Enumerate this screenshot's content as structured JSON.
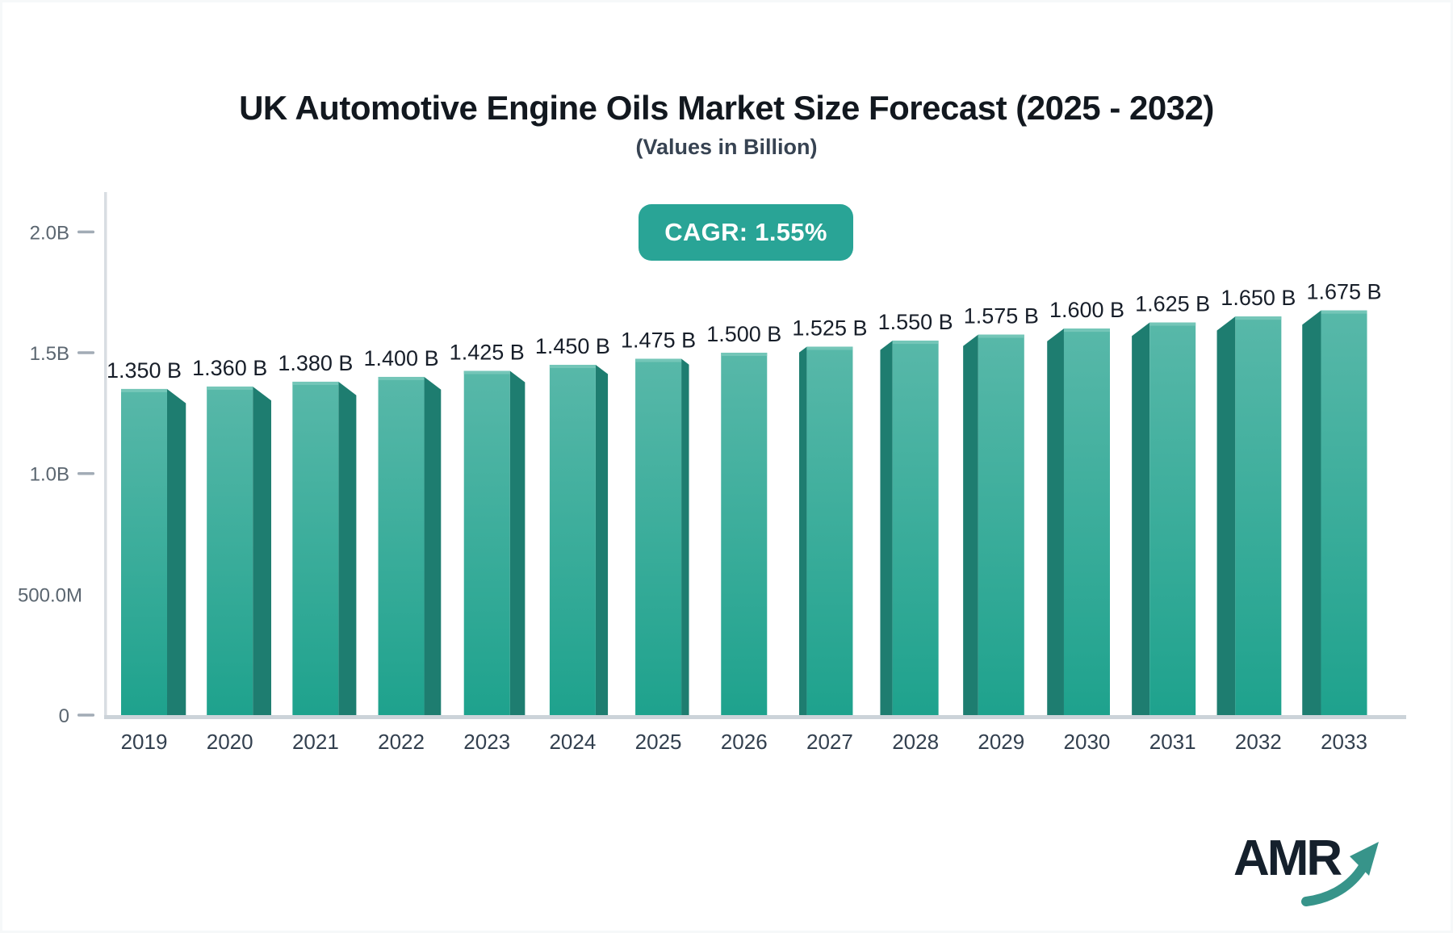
{
  "chart_data": {
    "type": "bar",
    "title": "UK Automotive Engine Oils Market Size Forecast (2025 - 2032)",
    "subtitle": "(Values in Billion)",
    "categories": [
      "2019",
      "2020",
      "2021",
      "2022",
      "2023",
      "2024",
      "2025",
      "2026",
      "2027",
      "2028",
      "2029",
      "2030",
      "2031",
      "2032",
      "2033"
    ],
    "values": [
      1.35,
      1.36,
      1.38,
      1.4,
      1.425,
      1.45,
      1.475,
      1.5,
      1.525,
      1.55,
      1.575,
      1.6,
      1.625,
      1.65,
      1.675
    ],
    "value_labels": [
      "1.350 B",
      "1.360 B",
      "1.380 B",
      "1.400 B",
      "1.425 B",
      "1.450 B",
      "1.475 B",
      "1.500 B",
      "1.525 B",
      "1.550 B",
      "1.575 B",
      "1.600 B",
      "1.625 B",
      "1.650 B",
      "1.675 B"
    ],
    "unit": "B",
    "ylim": [
      0,
      2.0
    ],
    "grid": false,
    "legend": false,
    "y_axis_ticks": [
      {
        "label": "2.0B",
        "value": 2.0,
        "dash": true
      },
      {
        "label": "1.5B",
        "value": 1.5,
        "dash": true
      },
      {
        "label": "1.0B",
        "value": 1.0,
        "dash": true
      },
      {
        "label": "500.0M",
        "value": 0.5,
        "dash": false
      },
      {
        "label": "0",
        "value": 0.0,
        "dash": true
      }
    ],
    "colors": {
      "bar_face_top": "#58b8a9",
      "bar_face_bottom": "#1ea28d",
      "bar_side": "#1e7d70",
      "bar_top_highlight": "#74c6b8",
      "axis_line": "#ccd3d9",
      "axis_line_vertical": "#d8dde2",
      "tick_dash": "#a2acb6"
    }
  },
  "cagr_badge": {
    "label": "CAGR: 1.55%",
    "bg_color": "#29a496"
  },
  "logo": {
    "text": "AMR",
    "text_color": "#15202c",
    "arrow_color": "#37948a"
  }
}
